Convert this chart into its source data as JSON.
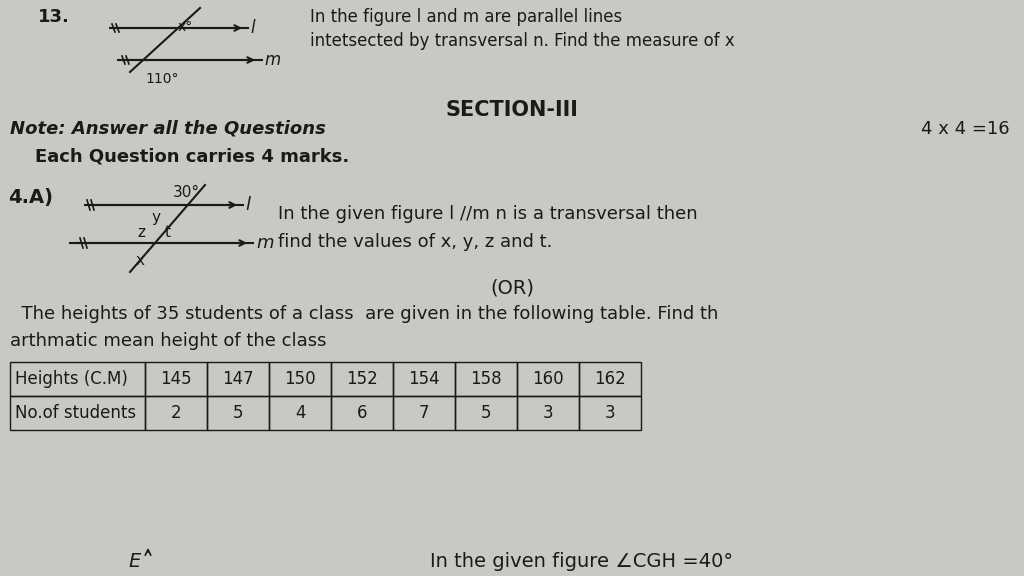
{
  "bg_color": "#c8c8c4",
  "text_color": "#1a1a1a",
  "title_section3": "SECTION-III",
  "note_text": "Note: Answer all the Questions",
  "each_q_text": "    Each Question carries 4 marks.",
  "score_text": "4 x 4 =16",
  "q4a_label": "4.A)",
  "q4a_problem_l1": "In the given figure l //m n is a transversal then",
  "q4a_problem_l2": "find the values of x, y, z and t.",
  "or_text": "(OR)",
  "heights_l1": "  The heights of 35 students of a class  are given in the following table. Find th",
  "heights_l2": "arthmatic mean height of the class",
  "table_headers": [
    "Heights (C.M)",
    "145",
    "147",
    "150",
    "152",
    "154",
    "158",
    "160",
    "162"
  ],
  "table_row2": [
    "No.of students",
    "2",
    "5",
    "4",
    "6",
    "7",
    "5",
    "3",
    "3"
  ],
  "top_q13": "13.",
  "top_problem_l1": "In the figure l and m are parallel lines",
  "top_problem_l2": "intetsected by transversal n. Find the measure of x",
  "bottom_left": "E",
  "bottom_right": "In the given figure ∠CGH =40°",
  "angle_110": "110°",
  "angle_x_top": "x°",
  "angle_30": "30°"
}
